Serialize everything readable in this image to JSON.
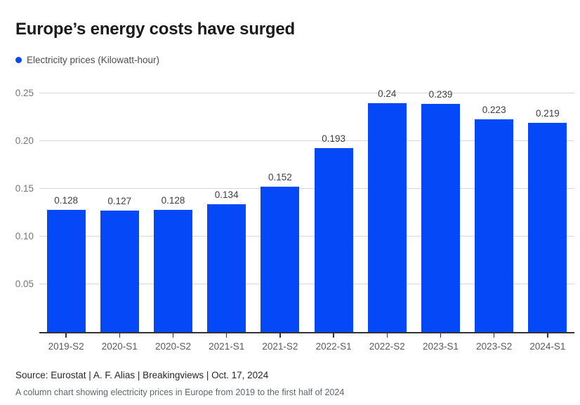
{
  "header": {
    "title": "Europe’s energy costs have surged"
  },
  "legend": {
    "label": "Electricity prices (Kilowatt-hour)",
    "dot_color": "#0548f7"
  },
  "chart_data": {
    "type": "bar",
    "title": "Europe’s energy costs have surged",
    "series_name": "Electricity prices (Kilowatt-hour)",
    "categories": [
      "2019-S2",
      "2020-S1",
      "2020-S2",
      "2021-S1",
      "2021-S2",
      "2022-S1",
      "2022-S2",
      "2023-S1",
      "2023-S2",
      "2024-S1"
    ],
    "values": [
      0.128,
      0.127,
      0.128,
      0.134,
      0.152,
      0.193,
      0.24,
      0.239,
      0.223,
      0.219
    ],
    "value_labels": [
      "0.128",
      "0.127",
      "0.128",
      "0.134",
      "0.152",
      "0.193",
      "0.24",
      "0.239",
      "0.223",
      "0.219"
    ],
    "xlabel": "",
    "ylabel": "",
    "ylim": [
      0,
      0.256
    ],
    "yticks": [
      0.05,
      0.1,
      0.15,
      0.2,
      0.25
    ],
    "ytick_labels": [
      "0.05",
      "0.10",
      "0.15",
      "0.20",
      "0.25"
    ],
    "grid": true,
    "legend_position": "top-left",
    "bar_color": "#0548f7",
    "gridline_color": "#d8d8d8",
    "axis_color": "#333333"
  },
  "footer": {
    "source": "Source: Eurostat | A. F. Alias | Breakingviews | Oct. 17, 2024",
    "alt_text": "A column chart showing electricity prices in Europe from 2019 to the first half of 2024"
  }
}
